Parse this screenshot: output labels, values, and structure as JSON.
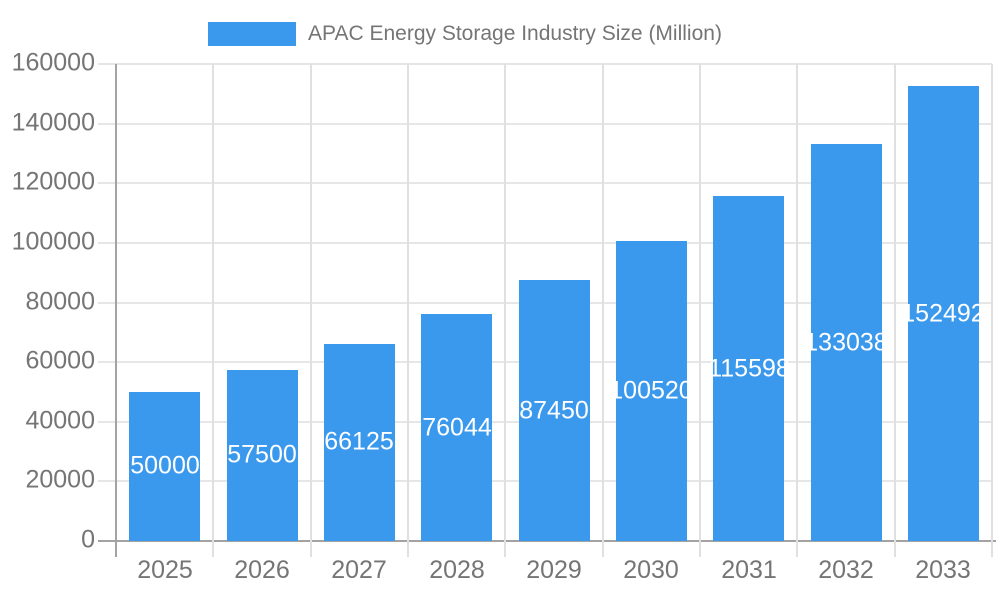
{
  "legend": {
    "label": "APAC Energy Storage Industry Size (Million)"
  },
  "chart_data": {
    "type": "bar",
    "title": "APAC Energy Storage Industry Size (Million)",
    "series_name": "APAC Energy Storage Industry Size (Million)",
    "categories": [
      "2025",
      "2026",
      "2027",
      "2028",
      "2029",
      "2030",
      "2031",
      "2032",
      "2033"
    ],
    "values": [
      50000,
      57500,
      66125,
      76044,
      87450,
      100520,
      115598,
      133038,
      152492
    ],
    "value_labels": [
      "50000",
      "57500",
      "66125",
      "76044",
      "87450",
      "100520",
      "115598",
      "133038",
      "152492"
    ],
    "xlabel": "",
    "ylabel": "",
    "ylim": [
      0,
      160000
    ],
    "ytick_step": 20000,
    "yticks": [
      0,
      20000,
      40000,
      60000,
      80000,
      100000,
      120000,
      140000,
      160000
    ],
    "ytick_labels": [
      "0",
      "20000",
      "40000",
      "60000",
      "80000",
      "100000",
      "120000",
      "140000",
      "160000"
    ],
    "grid": true,
    "legend_position": "top",
    "value_label_style": "inside-center-white"
  },
  "colors": {
    "bar": "#3b99ed",
    "axis_line": "#a3a3a3",
    "gridline": "#e6e6e6",
    "separator": "#e0e0e0",
    "tick_text": "#757575",
    "legend_text": "#757575",
    "value_label_text": "#ffffff",
    "background": "#ffffff"
  }
}
